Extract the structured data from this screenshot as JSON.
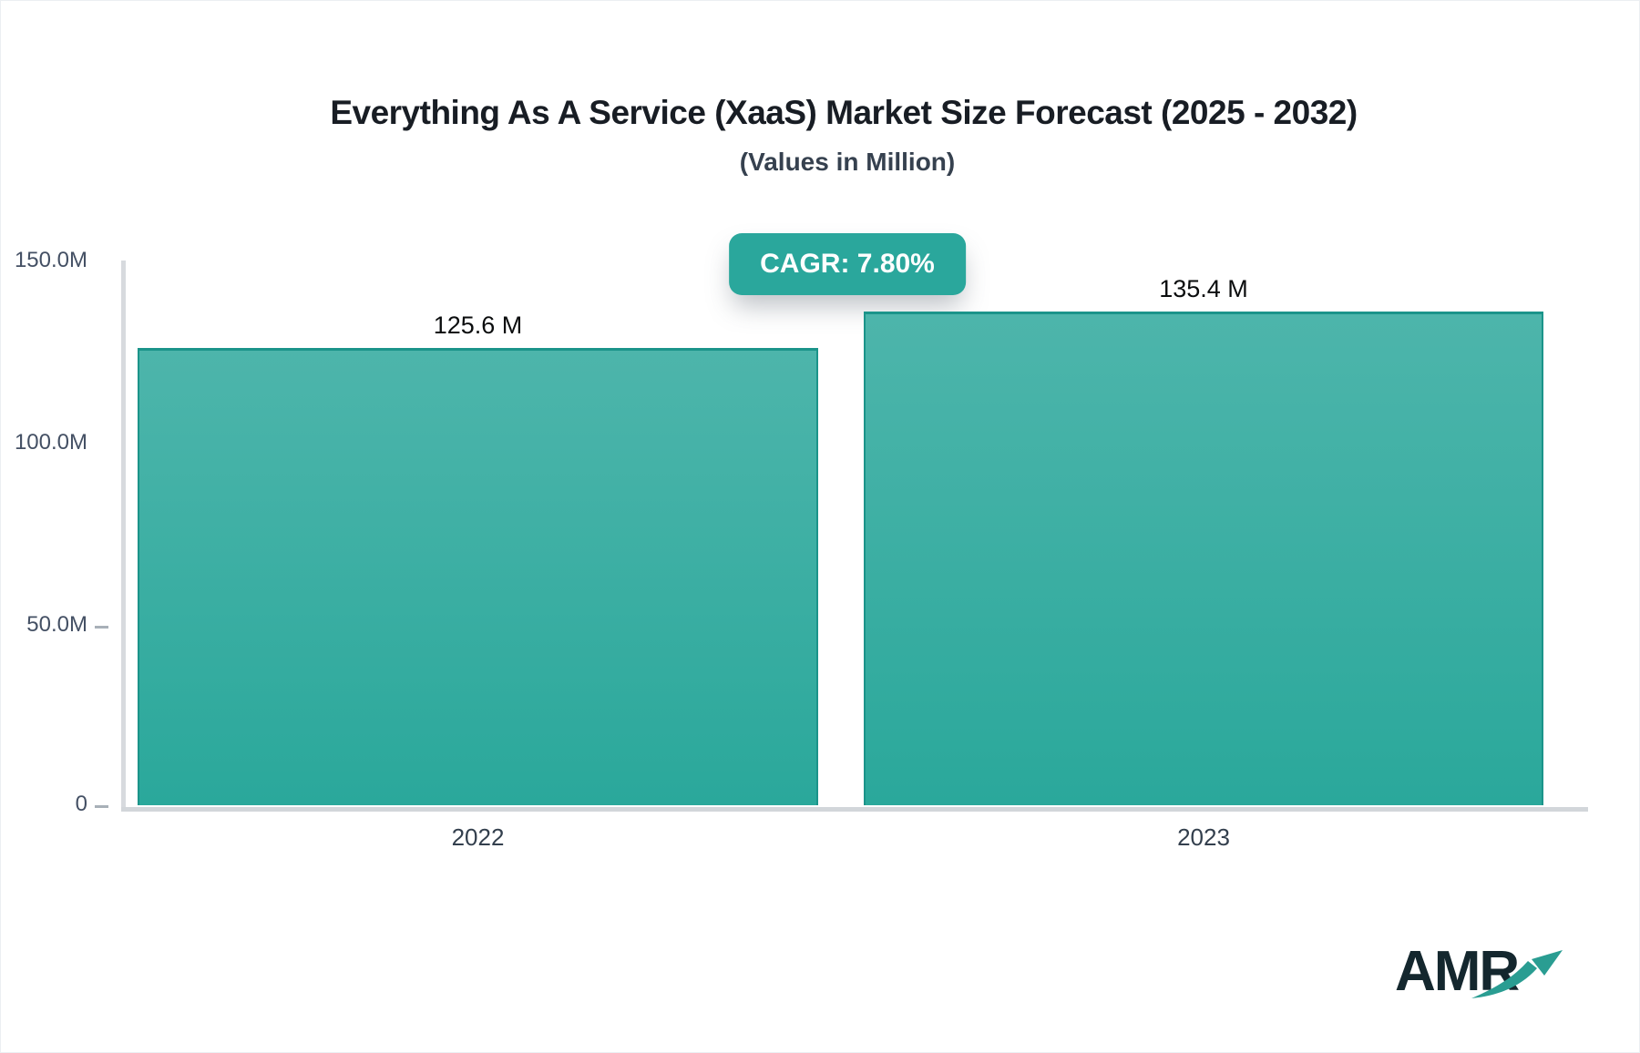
{
  "chart_data": {
    "type": "bar",
    "title": "Everything As A Service (XaaS) Market Size Forecast (2025 - 2032)",
    "subtitle": "(Values in Million)",
    "cagr_label": "CAGR: 7.80%",
    "categories": [
      "2022",
      "2023"
    ],
    "values": [
      125.6,
      135.4
    ],
    "value_labels": [
      "125.6 M",
      "135.4 M"
    ],
    "xlabel": "",
    "ylabel": "",
    "ylim": [
      0,
      150
    ],
    "yticks": [
      {
        "label": "150.0M",
        "value": 150
      },
      {
        "label": "100.0M",
        "value": 100
      },
      {
        "label": "50.0M",
        "value": 50
      },
      {
        "label": "0",
        "value": 0
      }
    ],
    "grid": false,
    "legend": "none",
    "colors": {
      "accent": "#2aa79c",
      "bar_top": "#4db5ab",
      "bar_bottom": "#2aa89b",
      "bar_border": "#1b948a",
      "axis_line": "#d2d6da",
      "title_text": "#181d24",
      "subtitle_text": "#36414f",
      "tick_text": "#445064"
    }
  },
  "logo": {
    "text": "AMR",
    "arrow_color": "#2a9d92"
  }
}
